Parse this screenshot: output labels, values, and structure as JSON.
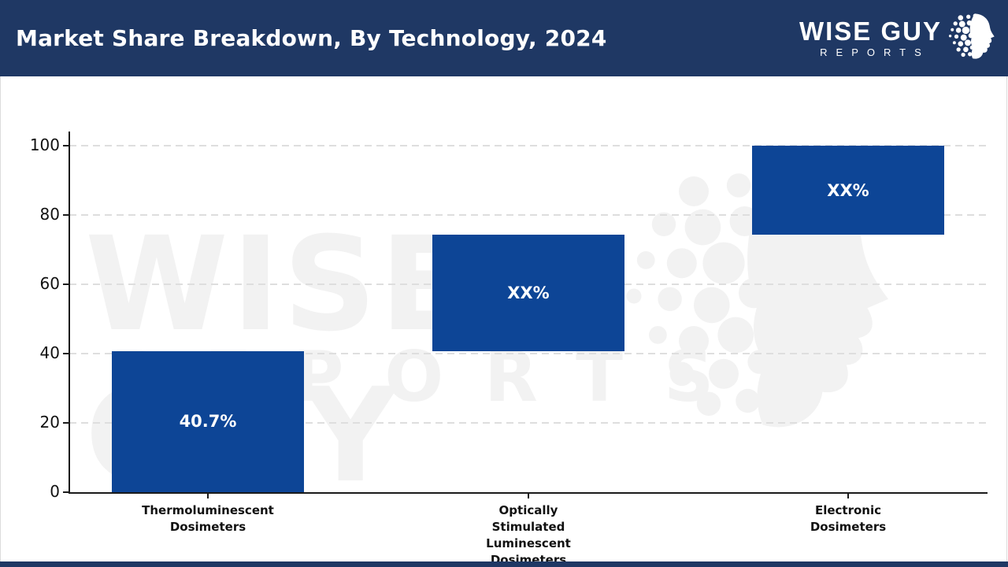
{
  "header": {
    "title": "Market Share Breakdown, By Technology, 2024",
    "logo_line1": "WISE GUY",
    "logo_line2": "REPORTS"
  },
  "watermark": {
    "line1": "WISE GUY",
    "line2": "REPORTS"
  },
  "colors": {
    "header_bg": "#1f3864",
    "footer_bg": "#1f3864",
    "bar_fill": "#0d4596",
    "bar_label_text": "#ffffff",
    "grid_line": "#dedede",
    "axis_line": "#1a1a1a",
    "watermark_gray": "#f2f2f2",
    "title_text": "#ffffff"
  },
  "chart_data": {
    "type": "bar",
    "subtype": "floating-waterfall",
    "title": "Market Share Breakdown, By Technology, 2024",
    "categories": [
      "Thermoluminescent Dosimeters",
      "Optically Stimulated Luminescent Dosimeters",
      "Electronic Dosimeters"
    ],
    "category_lines": [
      [
        "Thermoluminescent",
        "Dosimeters"
      ],
      [
        "Optically",
        "Stimulated",
        "Luminescent",
        "Dosimeters"
      ],
      [
        "Electronic",
        "Dosimeters"
      ]
    ],
    "series": [
      {
        "category": "Thermoluminescent Dosimeters",
        "start": 0,
        "end": 40.7,
        "value": 40.7,
        "label": "40.7%"
      },
      {
        "category": "Optically Stimulated Luminescent Dosimeters",
        "start": 40.7,
        "end": 74.3,
        "value": 33.6,
        "label": "XX%"
      },
      {
        "category": "Electronic Dosimeters",
        "start": 74.3,
        "end": 100,
        "value": 25.7,
        "label": "XX%"
      }
    ],
    "y_ticks": [
      0,
      20,
      40,
      60,
      80,
      100
    ],
    "ylim": [
      0,
      104
    ],
    "xlabel": "",
    "ylabel": "",
    "grid": "dashed-horizontal",
    "legend": "none"
  }
}
